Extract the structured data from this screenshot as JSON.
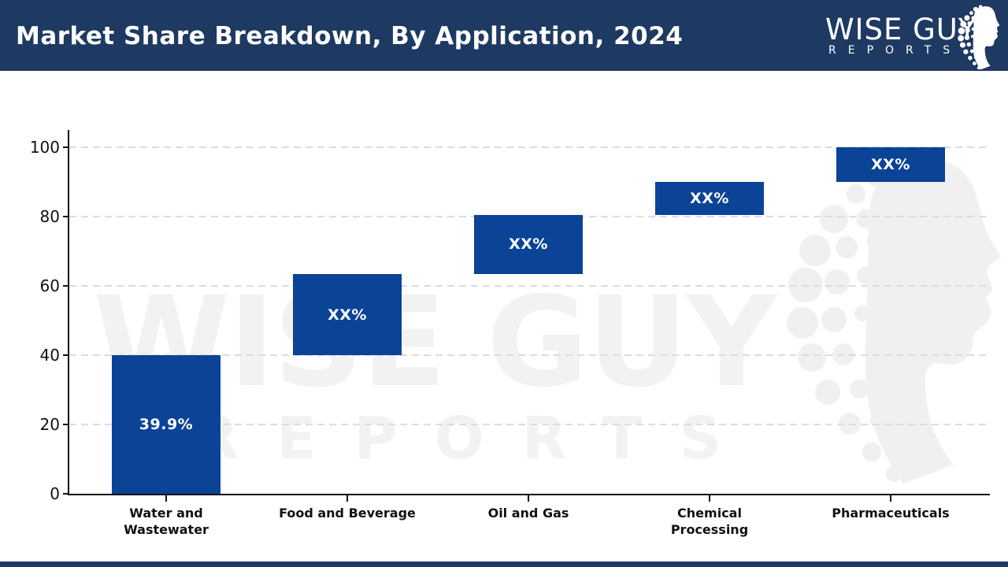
{
  "header": {
    "title": "Market Share Breakdown, By Application, 2024",
    "logo": {
      "line1": "WISE GUY",
      "line2": "REPORTS"
    }
  },
  "watermark": {
    "line1": "WISE GUY",
    "line2": "REPORTS"
  },
  "colors": {
    "header_bg": "#1e3a63",
    "bar_fill": "#0b4396",
    "bar_label": "#ffffff",
    "gridline": "#dcdcdc",
    "axis": "#111111",
    "watermark": "#f2f2f2",
    "watermark_head": "#f0f0f0",
    "logo_head": "#ffffff"
  },
  "chart_data": {
    "type": "bar",
    "subtype": "waterfall",
    "title": "Market Share Breakdown, By Application, 2024",
    "categories": [
      "Water and Wastewater",
      "Food and Beverage",
      "Oil and Gas",
      "Chemical Processing",
      "Pharmaceuticals"
    ],
    "category_lines": [
      [
        "Water and",
        "Wastewater"
      ],
      [
        "Food and Beverage"
      ],
      [
        "Oil and Gas"
      ],
      [
        "Chemical",
        "Processing"
      ],
      [
        "Pharmaceuticals"
      ]
    ],
    "segments": [
      {
        "start": 0,
        "end": 39.9,
        "label": "39.9%"
      },
      {
        "start": 39.9,
        "end": 63.5,
        "label": "XX%"
      },
      {
        "start": 63.5,
        "end": 80.5,
        "label": "XX%"
      },
      {
        "start": 80.5,
        "end": 90.0,
        "label": "XX%"
      },
      {
        "start": 90.0,
        "end": 100.0,
        "label": "XX%"
      }
    ],
    "xlabel": "",
    "ylabel": "",
    "yticks": [
      0,
      20,
      40,
      60,
      80,
      100
    ],
    "ylim": [
      0,
      105
    ],
    "grid": "horizontal-dashed",
    "legend": "none"
  }
}
